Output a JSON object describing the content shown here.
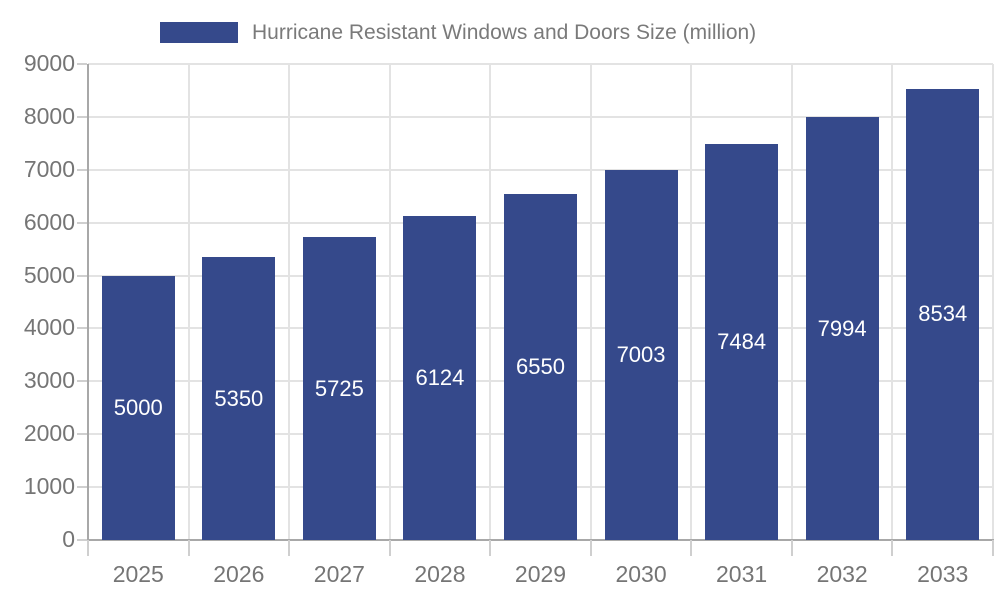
{
  "chart_data": {
    "type": "bar",
    "title": "",
    "legend": {
      "position": "top",
      "entries": [
        "Hurricane Resistant Windows and Doors Size (million)"
      ]
    },
    "categories": [
      "2025",
      "2026",
      "2027",
      "2028",
      "2029",
      "2030",
      "2031",
      "2032",
      "2033"
    ],
    "series": [
      {
        "name": "Hurricane Resistant Windows and Doors Size (million)",
        "values": [
          5000,
          5350,
          5725,
          6124,
          6550,
          7003,
          7484,
          7994,
          8534
        ]
      }
    ],
    "value_labels_shown": true,
    "xlabel": "",
    "ylabel": "",
    "ylim": [
      0,
      9000
    ],
    "yticks": [
      0,
      1000,
      2000,
      3000,
      4000,
      5000,
      6000,
      7000,
      8000,
      9000
    ],
    "grid": true,
    "colors": {
      "bar": "#35498B",
      "value_label": "#FFFFFF",
      "axis_text": "#757575",
      "legend_text": "#7A7A7A",
      "gridline": "#E3E3E3",
      "axis_line": "#A8A8A8",
      "tick": "#CFCFCF",
      "background": "#FFFFFF"
    }
  }
}
